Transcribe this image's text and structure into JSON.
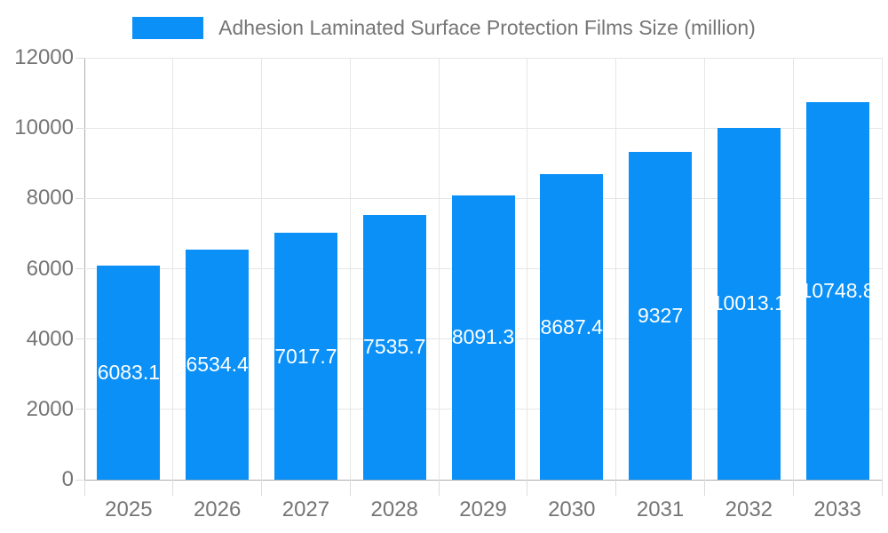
{
  "legend": {
    "label": "Adhesion Laminated Surface Protection Films Size (million)",
    "swatch_color": "#0a90f6"
  },
  "chart_data": {
    "type": "bar",
    "title": "",
    "categories": [
      "2025",
      "2026",
      "2027",
      "2028",
      "2029",
      "2030",
      "2031",
      "2032",
      "2033"
    ],
    "series": [
      {
        "name": "Adhesion Laminated Surface Protection Films Size (million)",
        "values": [
          6083.1,
          6534.4,
          7017.7,
          7535.7,
          8091.3,
          8687.4,
          9327,
          10013.1,
          10748.8
        ]
      }
    ],
    "value_labels": [
      "6083.1",
      "6534.4",
      "7017.7",
      "7535.7",
      "8091.3",
      "8687.4",
      "9327",
      "10013.1",
      "10748.8"
    ],
    "xlabel": "",
    "ylabel": "",
    "ylim": [
      0,
      12000
    ],
    "yticks": [
      0,
      2000,
      4000,
      6000,
      8000,
      10000,
      12000
    ],
    "grid": true,
    "legend_position": "top",
    "colors": {
      "bar": "#0a90f6",
      "bar_label": "#ffffff",
      "axis_text": "#757575",
      "axis_line": "#adadad",
      "grid_line": "#e6e6e6"
    }
  }
}
